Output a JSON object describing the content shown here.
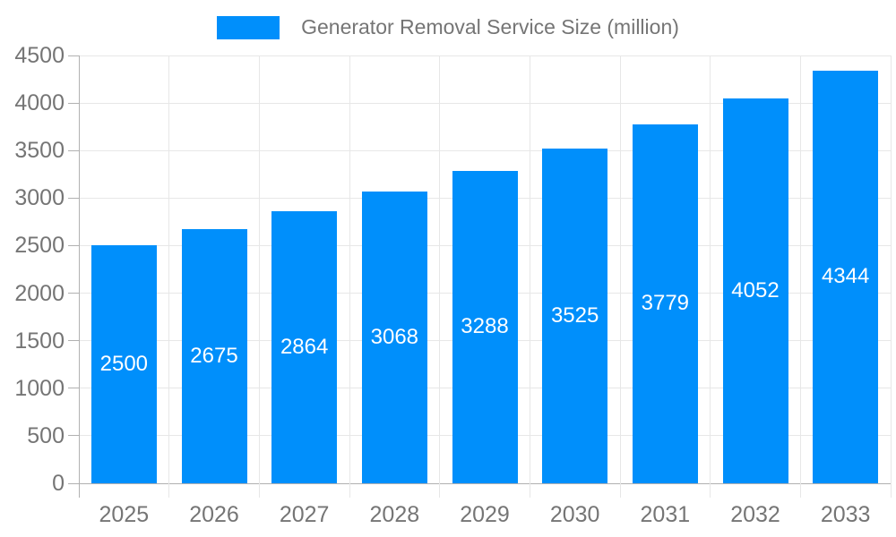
{
  "legend": {
    "label": "Generator Removal Service Size (million)",
    "swatch_color": "#008FFB"
  },
  "chart_data": {
    "type": "bar",
    "title": "",
    "categories": [
      "2025",
      "2026",
      "2027",
      "2028",
      "2029",
      "2030",
      "2031",
      "2032",
      "2033"
    ],
    "series": [
      {
        "name": "Generator Removal Service Size (million)",
        "values": [
          2500,
          2675,
          2864,
          3068,
          3288,
          3525,
          3779,
          4052,
          4344
        ]
      }
    ],
    "value_labels": [
      "2500",
      "2675",
      "2864",
      "3068",
      "3288",
      "3525",
      "3779",
      "4052",
      "4344"
    ],
    "xlabel": "",
    "ylabel": "",
    "ylim": [
      0,
      4500
    ],
    "y_ticks": [
      4500,
      4000,
      3500,
      3000,
      2500,
      2000,
      1500,
      1000,
      500,
      0
    ],
    "grid": true,
    "legend_position": "top",
    "colors": {
      "bar": "#008FFB",
      "value_label": "#ffffff",
      "axis_text": "#757575",
      "gridline": "#e7e7e7",
      "axis_line": "#b1b1b1",
      "background": "#ffffff"
    }
  }
}
